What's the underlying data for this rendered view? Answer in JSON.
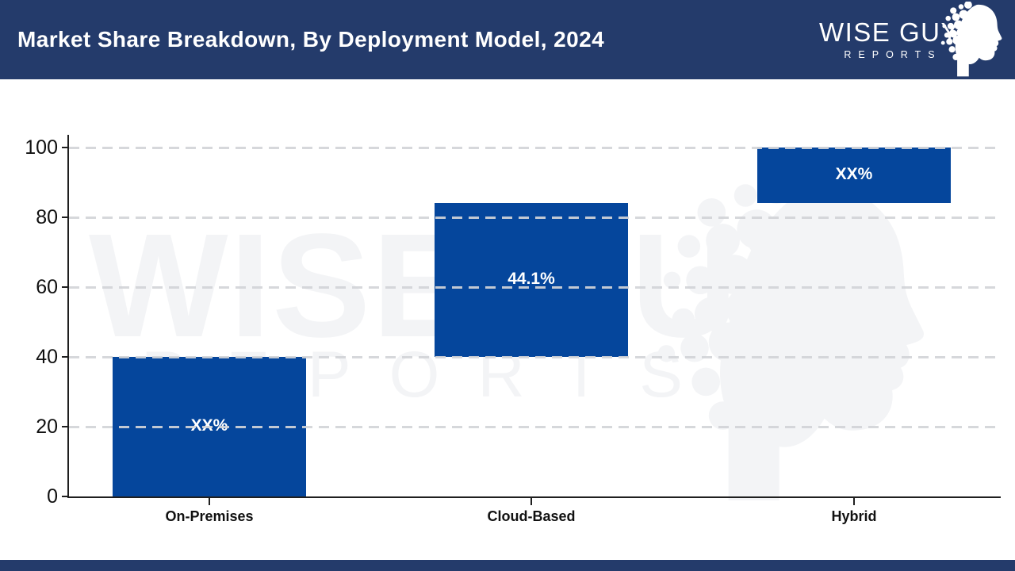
{
  "header": {
    "title": "Market Share Breakdown, By Deployment Model, 2024",
    "logo": {
      "name": "WISE GUY",
      "sub": "REPORTS"
    }
  },
  "watermark": {
    "line1": "WISE GUY",
    "line2": "REPORTS"
  },
  "chart_data": {
    "type": "bar",
    "subtype": "floating-segment-waterfall",
    "title": "Market Share Breakdown, By Deployment Model, 2024",
    "categories": [
      "On-Premises",
      "Cloud-Based",
      "Hybrid"
    ],
    "segments": [
      {
        "category": "On-Premises",
        "start": 0,
        "end": 40,
        "label": "XX%"
      },
      {
        "category": "Cloud-Based",
        "start": 40,
        "end": 84.1,
        "label": "44.1%"
      },
      {
        "category": "Hybrid",
        "start": 84.1,
        "end": 100,
        "label": "XX%"
      }
    ],
    "xlabel": "",
    "ylabel": "",
    "ylim": [
      0,
      100
    ],
    "yticks": [
      0,
      20,
      40,
      60,
      80,
      100
    ],
    "grid": "horizontal-dashed",
    "legend": "none",
    "bar_color": "#05469c",
    "bar_label_color": "#ffffff"
  },
  "colors": {
    "header_bg": "#243b6b",
    "footer_bg": "#243b6b",
    "bar": "#05469c",
    "gridline": "#d2d4d8",
    "axis": "#1f1f1f",
    "watermark": "#f3f4f6"
  }
}
